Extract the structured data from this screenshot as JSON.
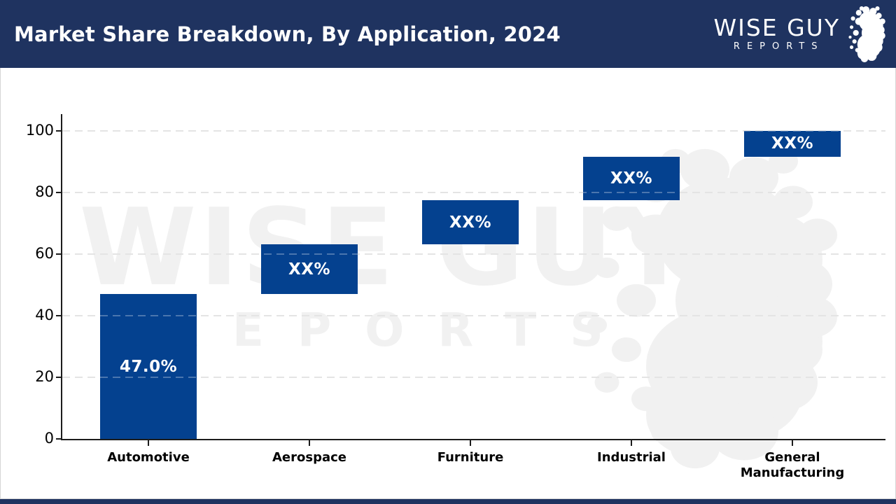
{
  "header": {
    "title": "Market Share Breakdown, By Application, 2024",
    "logo": {
      "line1": "WISE GUY",
      "line2": "REPORTS"
    }
  },
  "watermark": {
    "line1": "WISE GUY",
    "line2": "REPORTS"
  },
  "colors": {
    "header_bg": "#1f3360",
    "bar": "#04418f",
    "bar_label": "#ffffff",
    "grid": "#d9d9d9",
    "axis": "#1c1c1c",
    "watermark": "#f1f1f1"
  },
  "chart_data": {
    "type": "bar",
    "subtype": "waterfall",
    "title": "Market Share Breakdown, By Application, 2024",
    "categories": [
      "Automotive",
      "Aerospace",
      "Furniture",
      "Industrial",
      "General Manufacturing"
    ],
    "segments": [
      {
        "category": "Automotive",
        "start": 0,
        "end": 47.0,
        "label": "47.0%"
      },
      {
        "category": "Aerospace",
        "start": 47.0,
        "end": 63.2,
        "label": "XX%"
      },
      {
        "category": "Furniture",
        "start": 63.2,
        "end": 77.4,
        "label": "XX%"
      },
      {
        "category": "Industrial",
        "start": 77.4,
        "end": 91.6,
        "label": "XX%"
      },
      {
        "category": "General Manufacturing",
        "start": 91.6,
        "end": 100.0,
        "label": "XX%"
      }
    ],
    "xlabel": "",
    "ylabel": "",
    "yticks": [
      0,
      20,
      40,
      60,
      80,
      100
    ],
    "ylim": [
      0,
      105
    ],
    "grid": "horizontal-dashed",
    "legend": "none",
    "bar_color": "#04418f",
    "label_color": "#ffffff"
  }
}
